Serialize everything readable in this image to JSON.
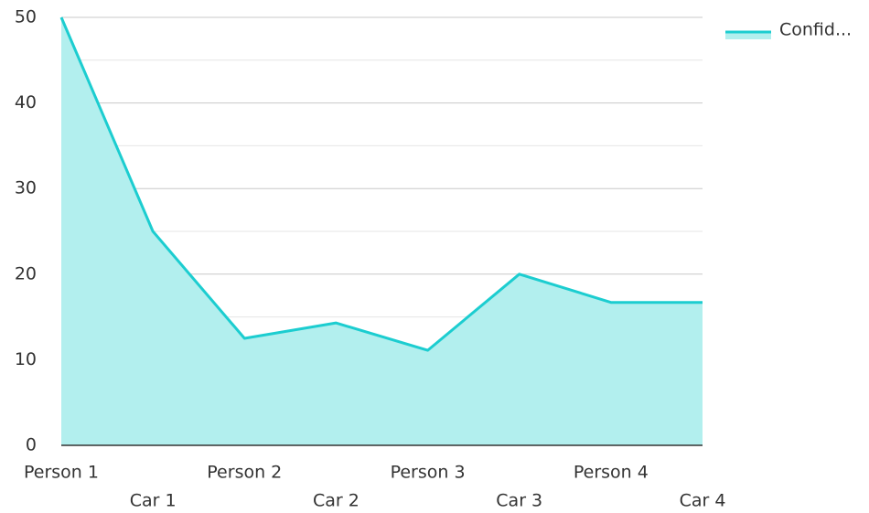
{
  "chart_data": {
    "type": "area",
    "categories": [
      "Person 1",
      "Car 1",
      "Person 2",
      "Car 2",
      "Person 3",
      "Car 3",
      "Person 4",
      "Car 4"
    ],
    "series": [
      {
        "name": "Confid...",
        "color": "#1ccdd0",
        "fill": "#b2efee",
        "values": [
          50,
          25,
          12.5,
          14.3,
          11.1,
          20,
          16.7,
          16.7
        ]
      }
    ],
    "ylim": [
      0,
      50
    ],
    "yticks": [
      0,
      10,
      20,
      30,
      40,
      50
    ],
    "grid": true,
    "legend": "top-right"
  }
}
